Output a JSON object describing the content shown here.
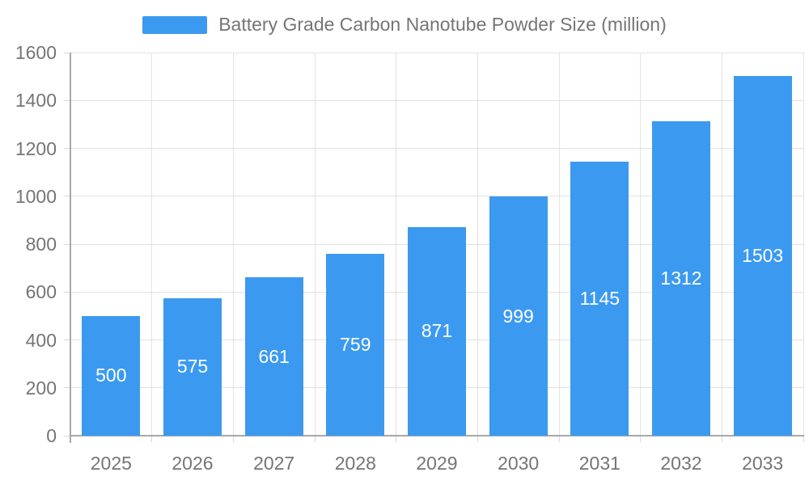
{
  "legend": {
    "label": "Battery Grade Carbon Nanotube Powder Size (million)"
  },
  "chart_data": {
    "type": "bar",
    "title": "Battery Grade Carbon Nanotube Powder Size (million)",
    "categories": [
      "2025",
      "2026",
      "2027",
      "2028",
      "2029",
      "2030",
      "2031",
      "2032",
      "2033"
    ],
    "values": [
      500,
      575,
      661,
      759,
      871,
      999,
      1145,
      1312,
      1503
    ],
    "xlabel": "",
    "ylabel": "",
    "ylim": [
      0,
      1600
    ],
    "yticks": [
      0,
      200,
      400,
      600,
      800,
      1000,
      1200,
      1400,
      1600
    ],
    "grid": true,
    "legend_position": "top",
    "bar_color": "#3B9AF0",
    "bar_label_color": "#FFFFFF",
    "axis_text_color": "#757575",
    "grid_color": "#E2E2E2",
    "axis_line_color": "#A8A8A8",
    "tick_color": "#D8D8D8"
  }
}
